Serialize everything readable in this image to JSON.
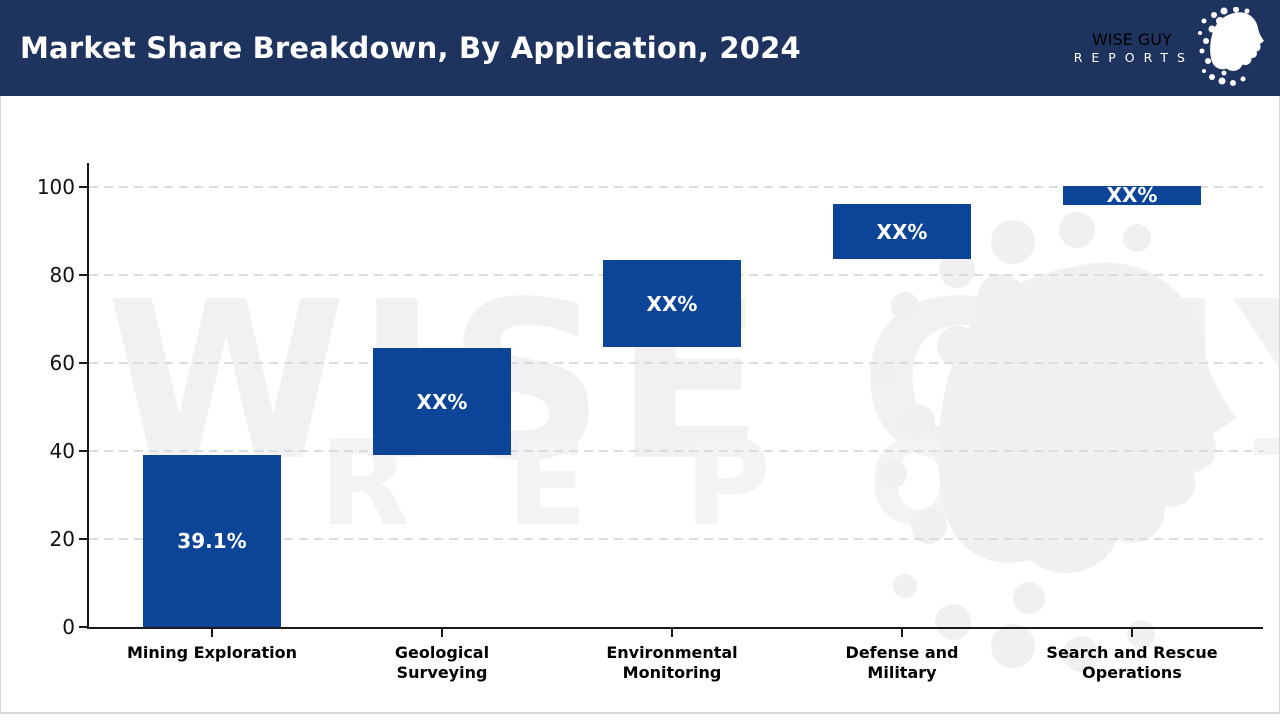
{
  "header": {
    "title": "Market Share Breakdown, By Application, 2024",
    "logo_line1": "WISE GUY",
    "logo_line2": "REPORTS",
    "background": "#1e345f"
  },
  "watermark": {
    "line1": "WISE GUY",
    "line2": "R E P O R T S"
  },
  "chart_data": {
    "type": "bar",
    "subtype": "waterfall",
    "title": "Market Share Breakdown, By Application, 2024",
    "categories": [
      "Mining Exploration",
      "Geological Surveying",
      "Environmental Monitoring",
      "Defense and Military",
      "Search and Rescue Operations"
    ],
    "category_lines": [
      [
        "Mining Exploration"
      ],
      [
        "Geological",
        "Surveying"
      ],
      [
        "Environmental",
        "Monitoring"
      ],
      [
        "Defense and",
        "Military"
      ],
      [
        "Search and Rescue",
        "Operations"
      ]
    ],
    "segments": [
      {
        "category": "Mining Exploration",
        "from": 0,
        "to": 39.1,
        "label": "39.1%"
      },
      {
        "category": "Geological Surveying",
        "from": 39.1,
        "to": 63.4,
        "label": "XX%"
      },
      {
        "category": "Environmental Monitoring",
        "from": 63.6,
        "to": 83.4,
        "label": "XX%"
      },
      {
        "category": "Defense and Military",
        "from": 83.6,
        "to": 96.1,
        "label": "XX%"
      },
      {
        "category": "Search and Rescue Operations",
        "from": 95.9,
        "to": 100.3,
        "label": "XX%"
      }
    ],
    "y_ticks": [
      0,
      20,
      40,
      60,
      80,
      100
    ],
    "ylim": [
      0,
      105
    ],
    "bar_color": "#0c4598",
    "bar_label_color": "#ffffff",
    "grid": true,
    "grid_style": "dashed",
    "legend": null,
    "xlabel": "",
    "ylabel": ""
  }
}
